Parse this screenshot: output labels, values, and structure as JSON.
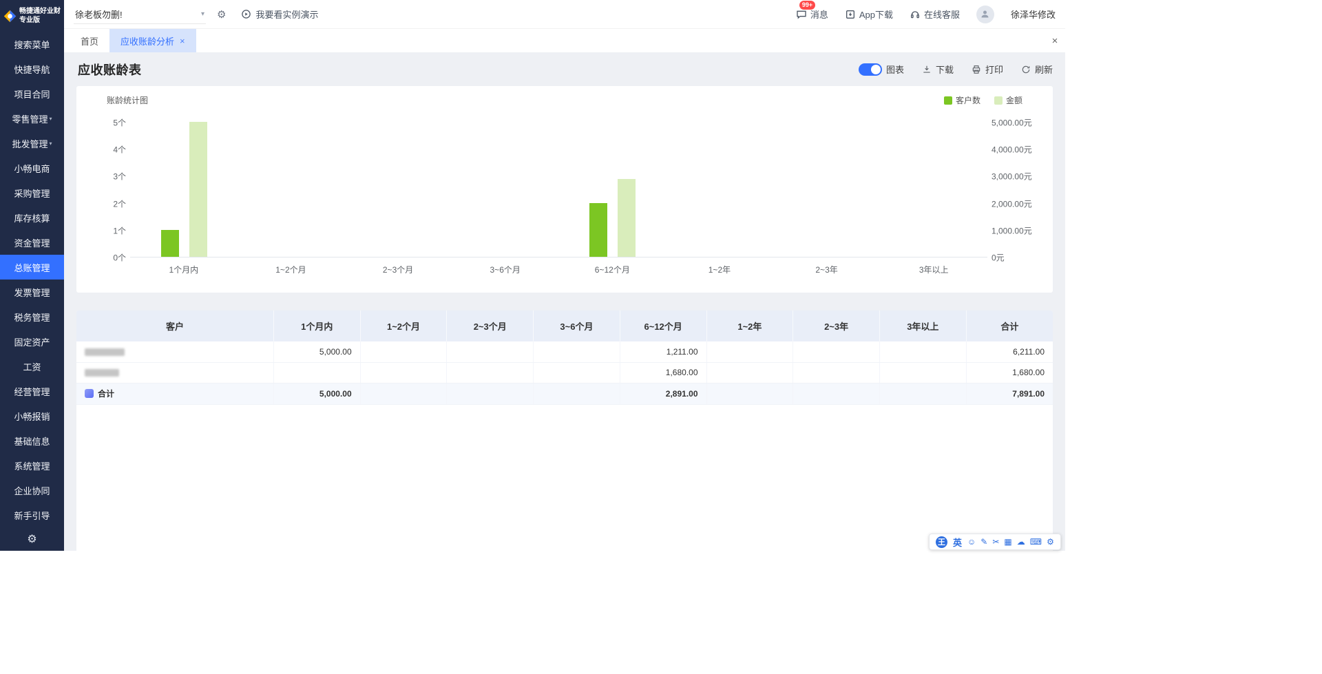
{
  "brand": {
    "name": "畅捷通好业财",
    "edition": "专业版"
  },
  "icons": {
    "chevron_down": "▾",
    "gear": "⚙",
    "close": "×"
  },
  "colors": {
    "accent": "#3370ff",
    "sidebar_bg": "#202b47",
    "tab_active_bg": "#d6e3fc",
    "table_header_bg": "#e9eef8",
    "badge_red": "#ff4a4a",
    "bar_customers": "#7cc623",
    "bar_amount": "#d9edbb"
  },
  "sidebar": {
    "items": [
      {
        "label": "搜索菜单",
        "expandable": false,
        "active": false
      },
      {
        "label": "快捷导航",
        "expandable": false,
        "active": false
      },
      {
        "label": "项目合同",
        "expandable": false,
        "active": false
      },
      {
        "label": "零售管理",
        "expandable": true,
        "active": false
      },
      {
        "label": "批发管理",
        "expandable": true,
        "active": false
      },
      {
        "label": "小畅电商",
        "expandable": false,
        "active": false
      },
      {
        "label": "采购管理",
        "expandable": false,
        "active": false
      },
      {
        "label": "库存核算",
        "expandable": false,
        "active": false
      },
      {
        "label": "资金管理",
        "expandable": false,
        "active": false
      },
      {
        "label": "总账管理",
        "expandable": false,
        "active": true
      },
      {
        "label": "发票管理",
        "expandable": false,
        "active": false
      },
      {
        "label": "税务管理",
        "expandable": false,
        "active": false
      },
      {
        "label": "固定资产",
        "expandable": false,
        "active": false
      },
      {
        "label": "工资",
        "expandable": false,
        "active": false
      },
      {
        "label": "经营管理",
        "expandable": false,
        "active": false
      },
      {
        "label": "小畅报销",
        "expandable": false,
        "active": false
      },
      {
        "label": "基础信息",
        "expandable": false,
        "active": false
      },
      {
        "label": "系统管理",
        "expandable": false,
        "active": false
      },
      {
        "label": "企业协同",
        "expandable": false,
        "active": false
      },
      {
        "label": "新手引导",
        "expandable": false,
        "active": false
      }
    ]
  },
  "topbar": {
    "company": "徐老板勿删!",
    "demo_label": "我要看实例演示",
    "message_label": "消息",
    "message_badge": "99+",
    "app_download_label": "App下载",
    "support_label": "在线客服",
    "user_name": "徐泽华修改"
  },
  "tabs": {
    "home": {
      "label": "首页"
    },
    "active": {
      "label": "应收账龄分析"
    }
  },
  "page": {
    "title": "应收账龄表",
    "toggle_label": "图表",
    "download_label": "下载",
    "print_label": "打印",
    "refresh_label": "刷新"
  },
  "chart_data": {
    "type": "bar",
    "title": "账龄统计图",
    "categories": [
      "1个月内",
      "1~2个月",
      "2~3个月",
      "3~6个月",
      "6~12个月",
      "1~2年",
      "2~3年",
      "3年以上"
    ],
    "series": [
      {
        "name": "客户数",
        "axis": "left",
        "color": "#7cc623",
        "values": [
          1,
          0,
          0,
          0,
          2,
          0,
          0,
          0
        ]
      },
      {
        "name": "金额",
        "axis": "right",
        "color": "#d9edbb",
        "values": [
          5000,
          0,
          0,
          0,
          2891,
          0,
          0,
          0
        ]
      }
    ],
    "left_axis": {
      "ticks_bottom_to_top": [
        "0个",
        "1个",
        "2个",
        "3个",
        "4个",
        "5个"
      ],
      "min": 0,
      "max": 5
    },
    "right_axis": {
      "ticks_bottom_to_top": [
        "0元",
        "1,000.00元",
        "2,000.00元",
        "3,000.00元",
        "4,000.00元",
        "5,000.00元"
      ],
      "min": 0,
      "max": 5000
    },
    "legend_position": "top-right",
    "grid": false
  },
  "table": {
    "headers": [
      "客户",
      "1个月内",
      "1~2个月",
      "2~3个月",
      "3~6个月",
      "6~12个月",
      "1~2年",
      "2~3年",
      "3年以上",
      "合计"
    ],
    "rows": [
      {
        "customer_redacted": true,
        "values": [
          "5,000.00",
          "",
          "",
          "",
          "1,211.00",
          "",
          "",
          "",
          "6,211.00"
        ]
      },
      {
        "customer_redacted": true,
        "values": [
          "",
          "",
          "",
          "",
          "1,680.00",
          "",
          "",
          "",
          "1,680.00"
        ]
      }
    ],
    "total_row": {
      "label": "合计",
      "values": [
        "5,000.00",
        "",
        "",
        "",
        "2,891.00",
        "",
        "",
        "",
        "7,891.00"
      ]
    }
  },
  "ime": {
    "logo": "王",
    "mode": "英",
    "icons": [
      {
        "name": "emoji-icon",
        "glyph": "☺"
      },
      {
        "name": "handwriting-pen-icon",
        "glyph": "✎"
      },
      {
        "name": "clip-scissors-icon",
        "glyph": "✂"
      },
      {
        "name": "skin-grid-icon",
        "glyph": "▦"
      },
      {
        "name": "cloud-sync-icon",
        "glyph": "☁"
      },
      {
        "name": "virtual-keyboard-icon",
        "glyph": "⌨"
      },
      {
        "name": "ime-settings-gear-icon",
        "glyph": "⚙"
      }
    ]
  }
}
